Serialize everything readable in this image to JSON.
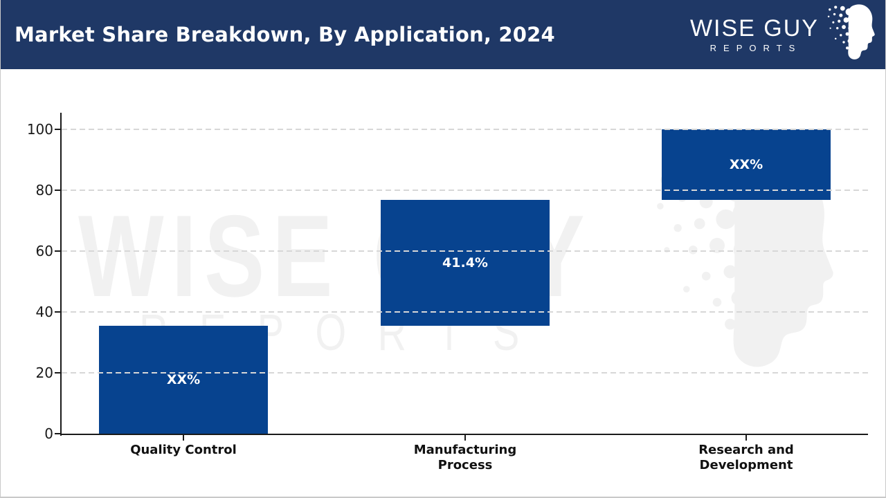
{
  "header": {
    "title": "Market Share Breakdown, By Application, 2024",
    "logo": {
      "line1": "WISE GUY",
      "line2": "REPORTS"
    }
  },
  "watermark": {
    "line1": "WISE GUY",
    "line2": "REPORTS"
  },
  "chart_data": {
    "type": "bar",
    "subtype": "waterfall",
    "title": "Market Share Breakdown, By Application, 2024",
    "categories": [
      "Quality Control",
      "Manufacturing Process",
      "Research and Development"
    ],
    "series": [
      {
        "name": "Market Share (%)",
        "segments": [
          {
            "category": "Quality Control",
            "start": 0,
            "end": 35.5,
            "label": "XX%"
          },
          {
            "category": "Manufacturing Process",
            "start": 35.5,
            "end": 76.9,
            "label": "41.4%"
          },
          {
            "category": "Research and Development",
            "start": 76.9,
            "end": 100,
            "label": "XX%"
          }
        ]
      }
    ],
    "xlabel": "",
    "ylabel": "",
    "ylim": [
      0,
      100
    ],
    "yticks": [
      0,
      20,
      40,
      60,
      80,
      100
    ],
    "grid": "horizontal dashed, drawn over bars",
    "legend": "none",
    "bar_color": "#07438f",
    "bar_label_color": "#ffffff"
  },
  "colors": {
    "header_bg": "#1f3866",
    "bar": "#07438f",
    "grid": "#d7d7d7",
    "axis": "#1a1a1a",
    "text": "#1a1a1a",
    "border": "#c9c9c9",
    "title_text": "#ffffff"
  }
}
